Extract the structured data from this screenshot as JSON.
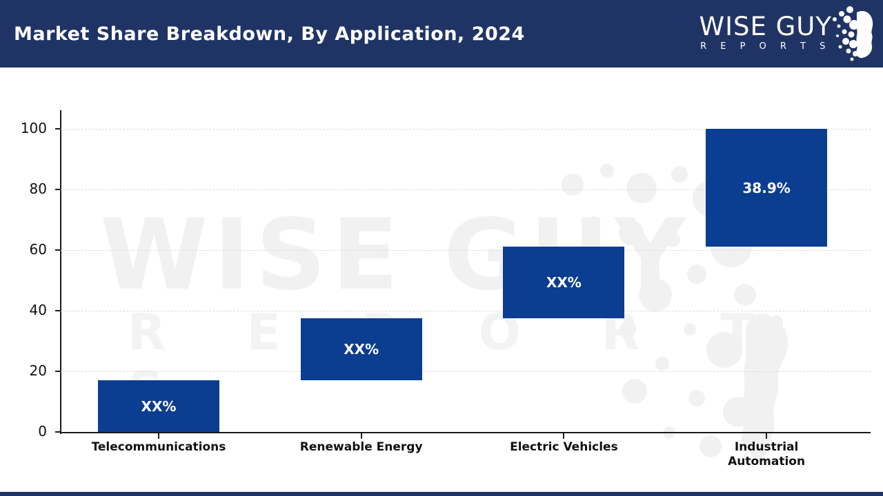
{
  "header": {
    "title": "Market Share Breakdown, By Application, 2024",
    "logo": {
      "line1": "WISE GUY",
      "line2": "R E P O R T S"
    }
  },
  "watermark": {
    "line1": "WISE GUY",
    "line2": "R E P O R T S"
  },
  "colors": {
    "header_bg": "#1f3464",
    "bar": "#0b3d91",
    "gridline": "#dcdcdc",
    "axis": "#1a1a1a",
    "watermark": "#f1f1f1",
    "bar_label": "#ffffff"
  },
  "chart_data": {
    "type": "bar",
    "subtype": "waterfall",
    "title": "Market Share Breakdown, By Application, 2024",
    "xlabel": "",
    "ylabel": "",
    "ylim": [
      0,
      105
    ],
    "yticks": [
      0,
      20,
      40,
      60,
      80,
      100
    ],
    "grid": "horizontal dashed",
    "legend": "none",
    "categories": [
      "Telecommunications",
      "Renewable Energy",
      "Electric Vehicles",
      "Industrial Automation"
    ],
    "series": [
      {
        "name": "Market Share %",
        "segments": [
          {
            "category": "Telecommunications",
            "start": 0,
            "end": 17.0,
            "value": 17.0,
            "label": "XX%"
          },
          {
            "category": "Renewable Energy",
            "start": 17.0,
            "end": 37.4,
            "value": 20.4,
            "label": "XX%"
          },
          {
            "category": "Electric Vehicles",
            "start": 37.4,
            "end": 61.1,
            "value": 23.7,
            "label": "XX%"
          },
          {
            "category": "Industrial Automation",
            "start": 61.1,
            "end": 100.0,
            "value": 38.9,
            "label": "38.9%"
          }
        ]
      }
    ]
  }
}
